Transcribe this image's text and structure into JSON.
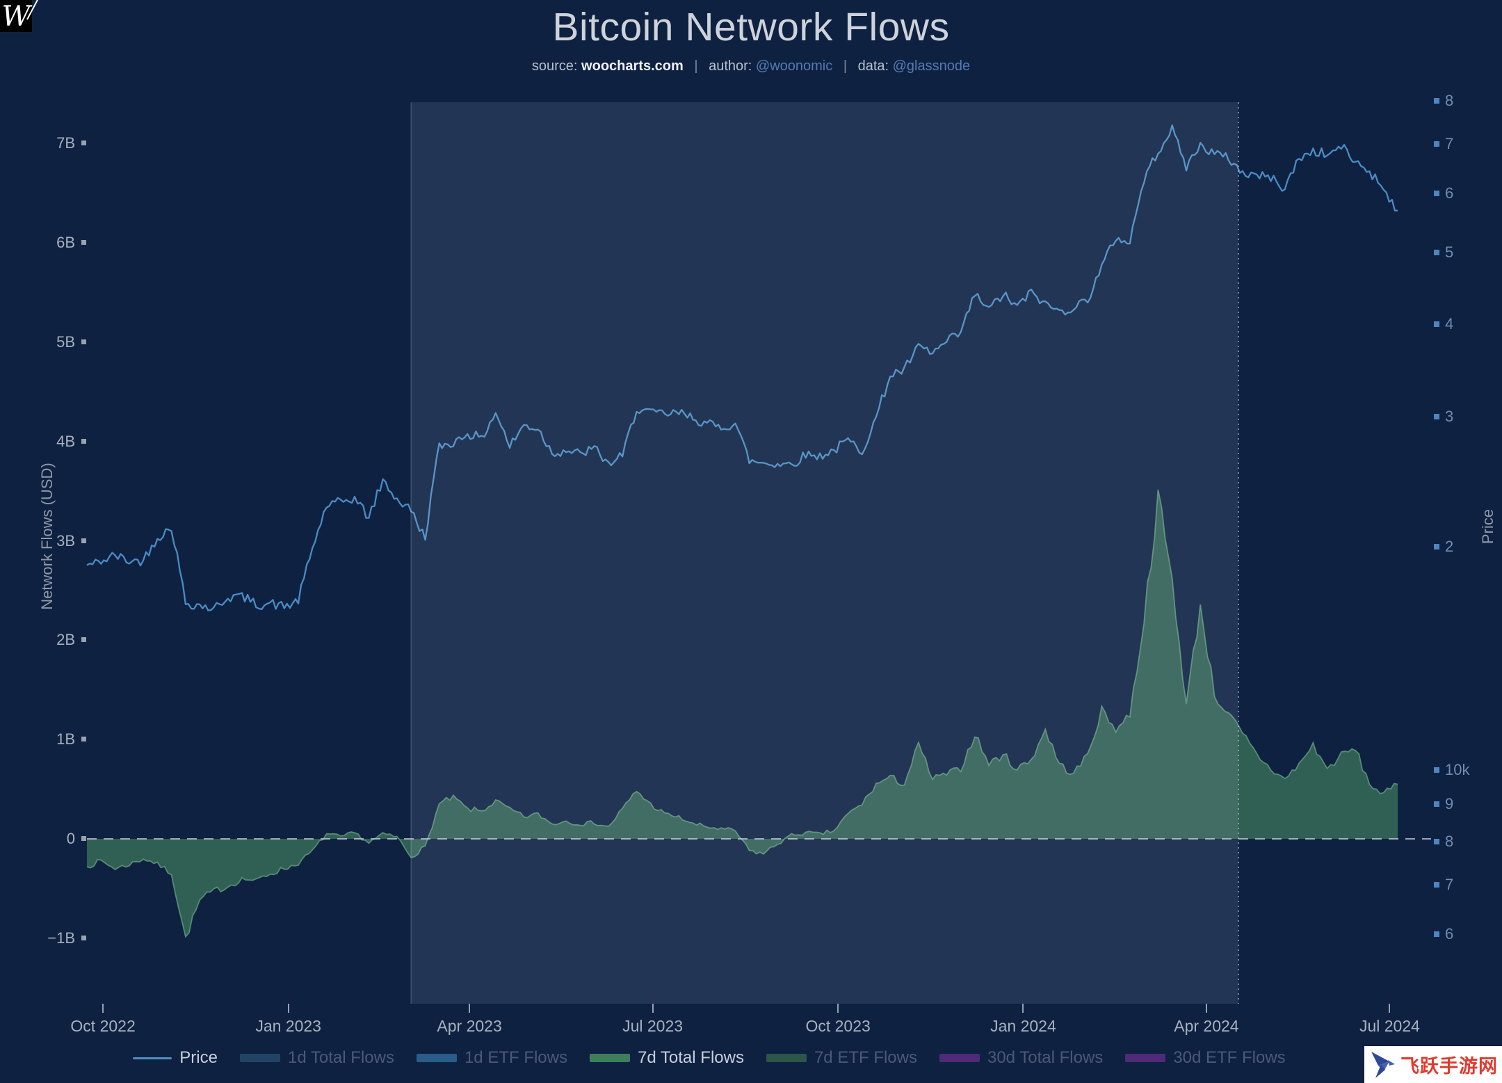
{
  "header": {
    "logo_letter": "W",
    "title": "Bitcoin Network Flows",
    "subtitle": {
      "source_label": "source:",
      "source_value": "woocharts.com",
      "sep1": "|",
      "author_label": "author:",
      "author_value": "@woonomic",
      "sep2": "|",
      "data_label": "data:",
      "data_value": "@glassnode"
    }
  },
  "axes": {
    "left_title": "Network Flows (USD)",
    "right_title": "Price",
    "left_ticks": [
      {
        "label": "7B",
        "value": 7
      },
      {
        "label": "6B",
        "value": 6
      },
      {
        "label": "5B",
        "value": 5
      },
      {
        "label": "4B",
        "value": 4
      },
      {
        "label": "3B",
        "value": 3
      },
      {
        "label": "2B",
        "value": 2
      },
      {
        "label": "1B",
        "value": 1
      },
      {
        "label": "0",
        "value": 0
      },
      {
        "label": "−1B",
        "value": -1
      }
    ],
    "right_ticks": [
      {
        "label": "8",
        "price_k": 80
      },
      {
        "label": "7",
        "price_k": 70
      },
      {
        "label": "6",
        "price_k": 60
      },
      {
        "label": "5",
        "price_k": 50
      },
      {
        "label": "4",
        "price_k": 40
      },
      {
        "label": "3",
        "price_k": 30
      },
      {
        "label": "2",
        "price_k": 20
      },
      {
        "label": "10k",
        "price_k": 10
      },
      {
        "label": "9",
        "price_k": 9
      },
      {
        "label": "8",
        "price_k": 8
      },
      {
        "label": "7",
        "price_k": 7
      },
      {
        "label": "6",
        "price_k": 6
      }
    ],
    "x_ticks": [
      {
        "label": "Oct 2022",
        "week": 1.14
      },
      {
        "label": "Jan 2023",
        "week": 14.29
      },
      {
        "label": "Apr 2023",
        "week": 27.14
      },
      {
        "label": "Jul 2023",
        "week": 40.14
      },
      {
        "label": "Oct 2023",
        "week": 53.29
      },
      {
        "label": "Jan 2024",
        "week": 66.43
      },
      {
        "label": "Apr 2024",
        "week": 79.43
      },
      {
        "label": "Jul 2024",
        "week": 92.43
      }
    ]
  },
  "legend": {
    "items": [
      {
        "label": "Price",
        "swatch": "line",
        "color": "#4e8fc4",
        "active": true
      },
      {
        "label": "1d Total Flows",
        "swatch": "bar",
        "color": "#214466",
        "active": false
      },
      {
        "label": "1d ETF Flows",
        "swatch": "bar",
        "color": "#2a5c89",
        "active": false
      },
      {
        "label": "7d Total Flows",
        "swatch": "bar",
        "color": "#3f7d5f",
        "active": true
      },
      {
        "label": "7d ETF Flows",
        "swatch": "bar",
        "color": "#2b5648",
        "active": false
      },
      {
        "label": "30d Total Flows",
        "swatch": "bar",
        "color": "#4e2a79",
        "active": false
      },
      {
        "label": "30d ETF Flows",
        "swatch": "bar",
        "color": "#4e2a79",
        "active": false
      }
    ]
  },
  "chart_data": {
    "type": "line+area",
    "title": "Bitcoin Network Flows",
    "interval": "weekly",
    "x_start": "2022-09-23",
    "x_end": "2024-07-05",
    "x_tick_labels": [
      "Oct 2022",
      "Jan 2023",
      "Apr 2023",
      "Jul 2023",
      "Oct 2023",
      "Jan 2024",
      "Apr 2024",
      "Jul 2024"
    ],
    "left_axis": {
      "label": "Network Flows (USD)",
      "unit": "billion USD",
      "ticks": [
        7,
        6,
        5,
        4,
        3,
        2,
        1,
        0,
        -1
      ],
      "zero_line_dashed": true
    },
    "right_axis": {
      "label": "Price",
      "unit": "USD",
      "scale": "log",
      "ticks_usd": [
        80000,
        70000,
        60000,
        50000,
        40000,
        30000,
        20000,
        10000,
        9000,
        8000,
        7000,
        6000
      ]
    },
    "highlight_region": {
      "from_week": 23.0,
      "to_week": 81.7
    },
    "series": [
      {
        "name": "Price",
        "type": "line",
        "axis": "right",
        "color": "#4a8cc2",
        "values_usd_k": [
          18.9,
          19.1,
          19.5,
          19.1,
          19.2,
          20.6,
          21.2,
          16.8,
          16.7,
          16.5,
          17.1,
          17.2,
          16.7,
          16.8,
          16.6,
          16.9,
          19.9,
          22.7,
          23.0,
          23.3,
          21.9,
          24.6,
          23.2,
          22.4,
          20.5,
          27.4,
          27.6,
          28.5,
          28.0,
          30.4,
          27.3,
          29.2,
          28.9,
          26.8,
          27.0,
          26.7,
          27.2,
          25.9,
          26.5,
          30.7,
          30.4,
          30.2,
          30.3,
          29.9,
          29.3,
          29.0,
          29.4,
          26.1,
          26.0,
          25.9,
          25.9,
          26.6,
          26.6,
          27.0,
          27.9,
          26.9,
          29.9,
          34.1,
          34.7,
          37.3,
          36.5,
          37.8,
          38.9,
          43.8,
          41.9,
          43.8,
          42.2,
          44.2,
          42.6,
          41.6,
          42.1,
          43.1,
          47.8,
          52.2,
          51.6,
          62.5,
          68.5,
          73.5,
          65.0,
          69.9,
          67.9,
          66.9,
          64.0,
          63.6,
          62.9,
          61.0,
          66.9,
          68.6,
          67.6,
          69.4,
          66.2,
          64.3,
          61.0,
          56.9
        ]
      },
      {
        "name": "7d Total Flows",
        "type": "area",
        "axis": "left",
        "color": "#3a7059",
        "values_billion_usd": [
          -0.28,
          -0.22,
          -0.3,
          -0.26,
          -0.2,
          -0.25,
          -0.35,
          -1.0,
          -0.62,
          -0.52,
          -0.48,
          -0.4,
          -0.42,
          -0.35,
          -0.3,
          -0.25,
          -0.12,
          0.05,
          0.02,
          0.06,
          -0.04,
          0.05,
          0.02,
          -0.18,
          -0.08,
          0.35,
          0.42,
          0.3,
          0.28,
          0.38,
          0.3,
          0.22,
          0.25,
          0.15,
          0.18,
          0.15,
          0.16,
          0.12,
          0.3,
          0.48,
          0.35,
          0.25,
          0.22,
          0.15,
          0.12,
          0.1,
          0.08,
          -0.12,
          -0.15,
          -0.05,
          0.04,
          0.06,
          0.05,
          0.08,
          0.25,
          0.35,
          0.55,
          0.62,
          0.55,
          0.95,
          0.6,
          0.65,
          0.7,
          1.05,
          0.75,
          0.85,
          0.7,
          0.8,
          1.1,
          0.75,
          0.65,
          0.85,
          1.3,
          1.1,
          1.25,
          2.2,
          3.45,
          2.6,
          1.35,
          2.35,
          1.45,
          1.25,
          1.05,
          0.85,
          0.7,
          0.6,
          0.75,
          0.95,
          0.7,
          0.85,
          0.9,
          0.55,
          0.45,
          0.55
        ]
      }
    ]
  },
  "watermark": {
    "text": "飞跃手游网"
  }
}
